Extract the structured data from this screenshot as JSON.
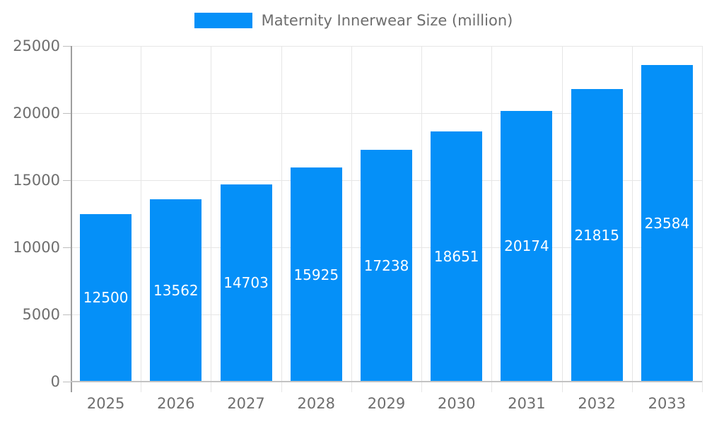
{
  "chart_data": {
    "type": "bar",
    "title": "Maternity Innerwear Size (million)",
    "categories": [
      "2025",
      "2026",
      "2027",
      "2028",
      "2029",
      "2030",
      "2031",
      "2032",
      "2033"
    ],
    "series": [
      {
        "name": "Maternity Innerwear Size (million)",
        "values": [
          12500,
          13562,
          14703,
          15925,
          17238,
          18651,
          20174,
          21815,
          23584
        ]
      }
    ],
    "data_labels": [
      "12500",
      "13562",
      "14703",
      "15925",
      "17238",
      "18651",
      "20174",
      "21815",
      "23584"
    ],
    "xlabel": "",
    "ylabel": "",
    "ylim": [
      0,
      25000
    ],
    "yticks": [
      0,
      5000,
      10000,
      15000,
      20000,
      25000
    ],
    "ytick_labels": [
      "0",
      "5000",
      "10000",
      "15000",
      "20000",
      "25000"
    ],
    "grid": true,
    "legend_position": "top-center",
    "colors": {
      "bar": "#0590f8",
      "bar_label_text": "#ffffff",
      "axis_text": "#6e6e6e",
      "legend_text": "#6e6e6e",
      "gridline": "#e6e6e6",
      "axis_line": "#9e9e9e",
      "baseline": "#c2c2c2",
      "tick": "#bdbdbd",
      "background": "#ffffff"
    }
  },
  "legend": {
    "label": "Maternity Innerwear Size (million)",
    "swatch_color": "#0590f8"
  }
}
